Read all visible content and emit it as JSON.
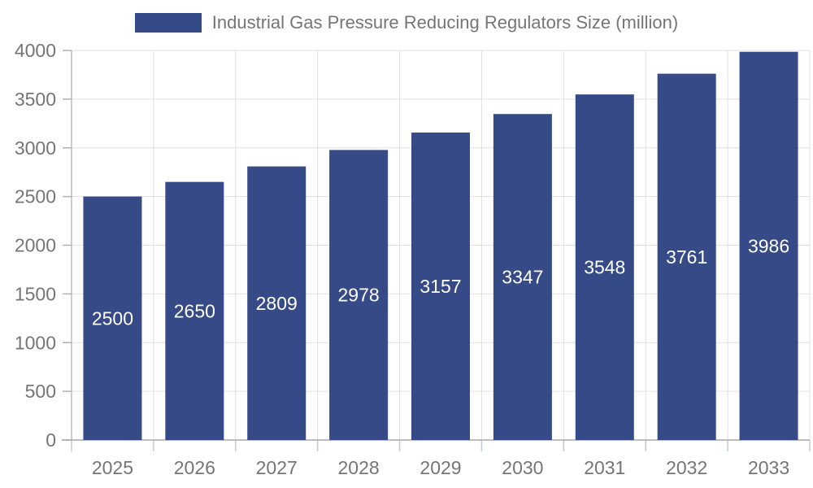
{
  "chart_data": {
    "type": "bar",
    "title": "Industrial Gas Pressure Reducing Regulators Size (million)",
    "legend": "Industrial Gas Pressure Reducing Regulators Size (million)",
    "categories": [
      "2025",
      "2026",
      "2027",
      "2028",
      "2029",
      "2030",
      "2031",
      "2032",
      "2033"
    ],
    "values": [
      2500,
      2650,
      2809,
      2978,
      3157,
      3347,
      3548,
      3761,
      3986
    ],
    "yticks": [
      0,
      500,
      1000,
      1500,
      2000,
      2500,
      3000,
      3500,
      4000
    ],
    "ylim": [
      0,
      4000
    ],
    "xlabel": "",
    "ylabel": "",
    "grid": true,
    "legend_position": "top-center",
    "value_labels": "inside-center",
    "colors": {
      "bar": "#364a88",
      "value_text": "#ffffff",
      "axis_text": "#757575",
      "legend_text": "#757575",
      "grid_line": "#e0e0e0",
      "y_axis_line": "#b7bdcc",
      "x_axis_line": "#a9a9a9",
      "y_tick": "#b0b0b0",
      "x_tick": "#c5cad7",
      "background": "#ffffff"
    }
  }
}
